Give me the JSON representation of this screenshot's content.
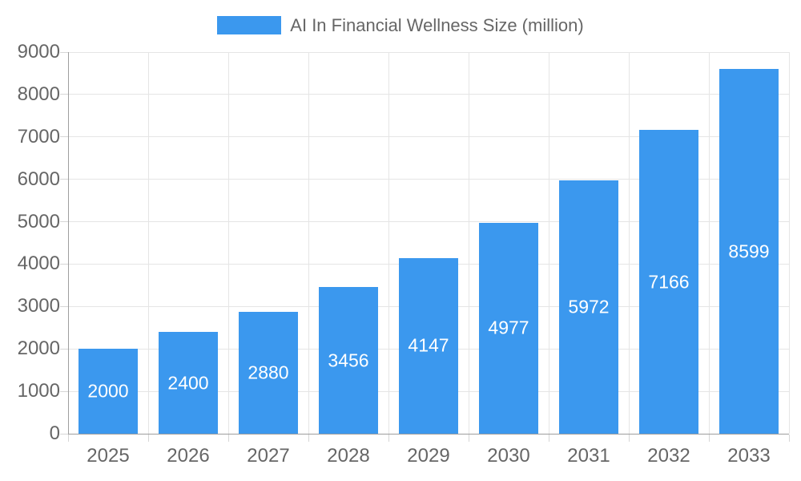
{
  "chart_data": {
    "type": "bar",
    "title": "AI In Financial Wellness Size (million)",
    "categories": [
      "2025",
      "2026",
      "2027",
      "2028",
      "2029",
      "2030",
      "2031",
      "2032",
      "2033"
    ],
    "values": [
      2000,
      2400,
      2880,
      3456,
      4147,
      4977,
      5972,
      7166,
      8599
    ],
    "series": [
      {
        "name": "AI In Financial Wellness Size (million)",
        "values": [
          2000,
          2400,
          2880,
          3456,
          4147,
          4977,
          5972,
          7166,
          8599
        ]
      }
    ],
    "xlabel": "",
    "ylabel": "",
    "ylim": [
      0,
      9000
    ],
    "ytick_step": 1000,
    "ytick_labels": [
      "0",
      "1000",
      "2000",
      "3000",
      "4000",
      "5000",
      "6000",
      "7000",
      "8000",
      "9000"
    ],
    "grid": true,
    "legend_position": "top-center",
    "value_labels_shown": true
  },
  "colors": {
    "bar": "#3b98ee",
    "grid": "#e5e5e5",
    "axis": "#9e9e9e",
    "tick": "#d6d6d6",
    "tick_label": "#666666",
    "legend_label": "#666666",
    "value_label": "#ffffff",
    "background": "#ffffff"
  }
}
